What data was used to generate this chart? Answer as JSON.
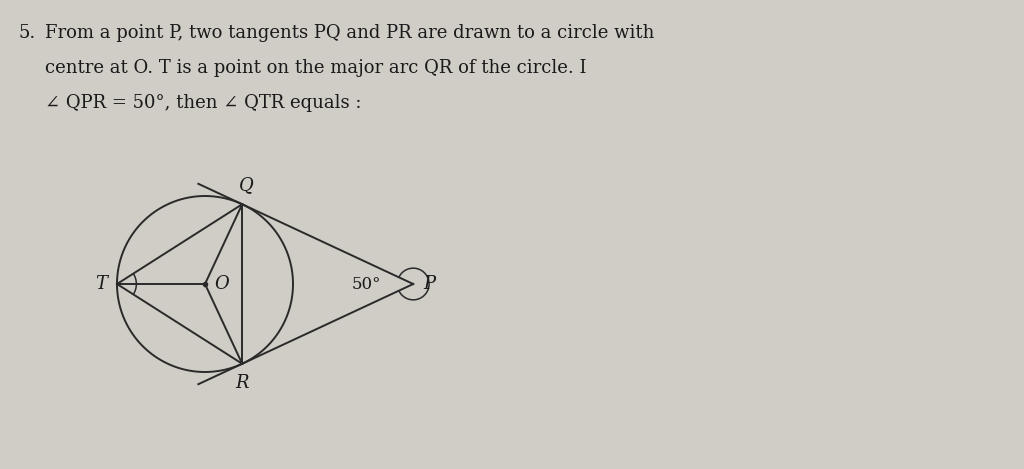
{
  "background_color": "#d0ccC6",
  "text_color": "#1a1a1a",
  "line_color": "#2a2a2a",
  "font_size_text": 13,
  "font_size_labels": 12,
  "question_number": "5.",
  "title_lines": [
    "From a point P, two tangents PQ and PR are drawn to a circle with",
    "centre at O. T is a point on the major arc QR of the circle. I",
    "∠ QPR = 50°, then ∠ QTR equals :"
  ]
}
